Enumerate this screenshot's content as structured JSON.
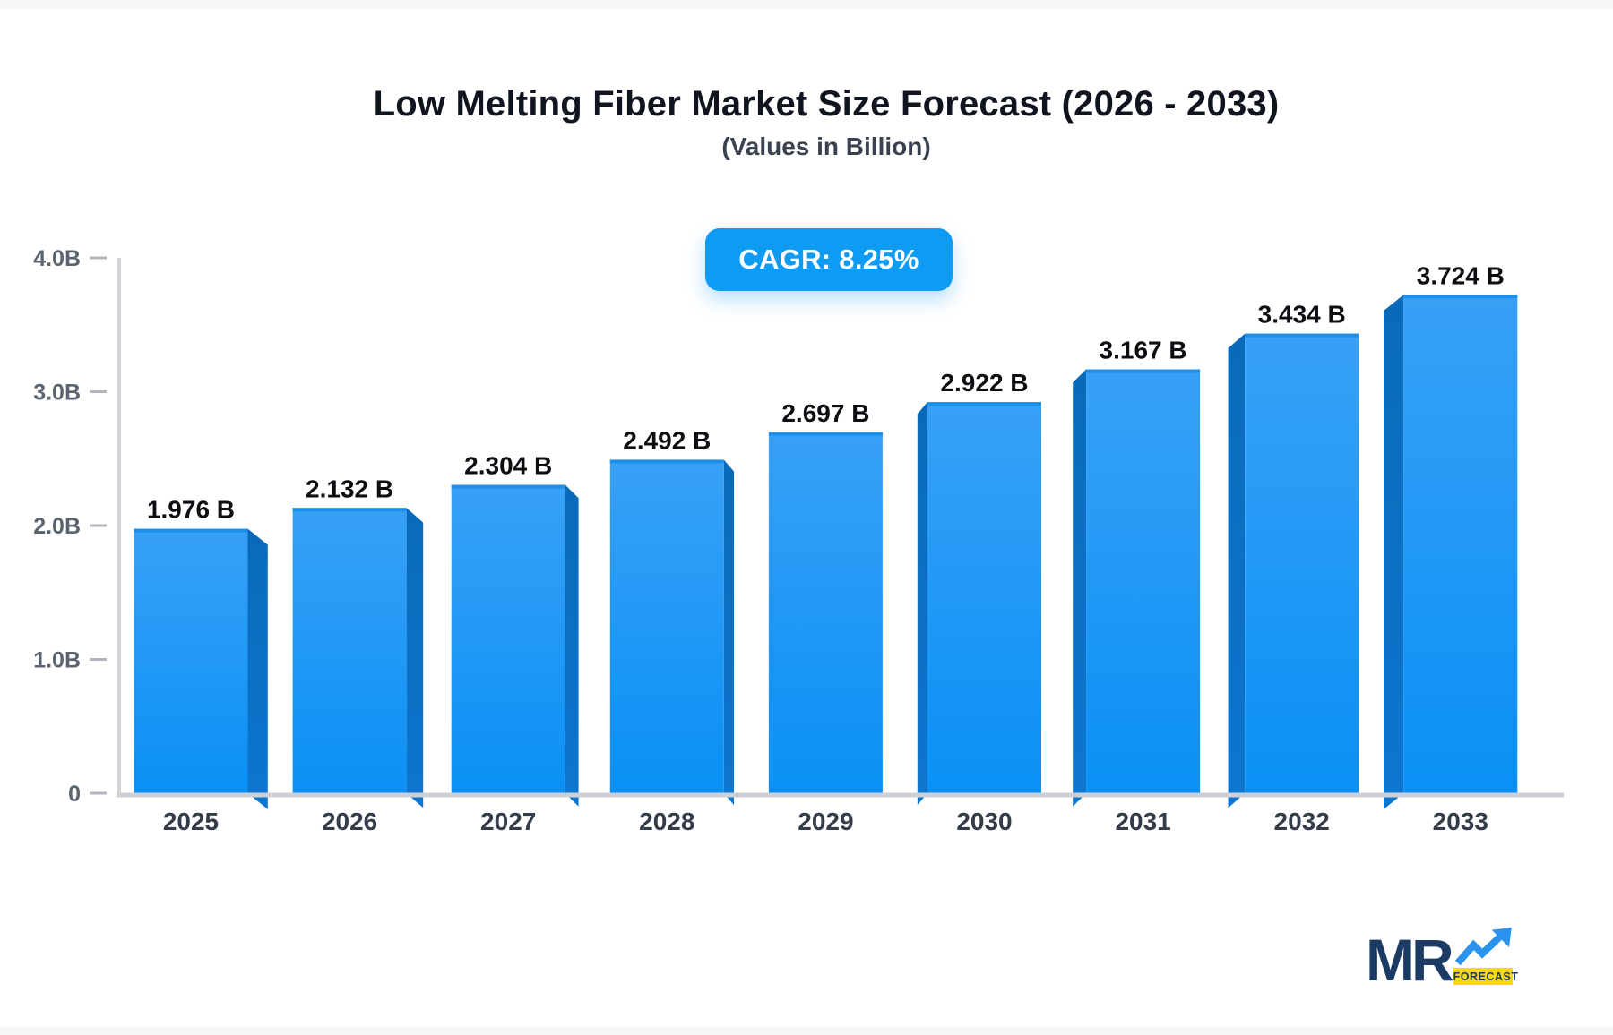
{
  "page": {
    "background": "#f6f7f8",
    "card_background": "#ffffff"
  },
  "header": {
    "title": "Low Melting Fiber Market Size Forecast (2026 - 2033)",
    "subtitle": "(Values in Billion)"
  },
  "badge": {
    "label": "CAGR: 8.25%",
    "background": "#0e9bf3",
    "text_color": "#ffffff"
  },
  "chart_data": {
    "type": "bar",
    "title": "Low Melting Fiber Market Size Forecast (2026 - 2033)",
    "subtitle": "(Values in Billion)",
    "unit": "Billion",
    "cagr_percent": 8.25,
    "categories": [
      "2025",
      "2026",
      "2027",
      "2028",
      "2029",
      "2030",
      "2031",
      "2032",
      "2033"
    ],
    "values": [
      1.976,
      2.132,
      2.304,
      2.492,
      2.697,
      2.922,
      3.167,
      3.434,
      3.724
    ],
    "value_labels": [
      "1.976 B",
      "2.132 B",
      "2.304 B",
      "2.492 B",
      "2.697 B",
      "2.922 B",
      "3.167 B",
      "3.434 B",
      "3.724 B"
    ],
    "y_ticks": [
      {
        "label": "4.0B",
        "value": 4.0
      },
      {
        "label": "3.0B",
        "value": 3.0
      },
      {
        "label": "2.0B",
        "value": 2.0
      },
      {
        "label": "1.0B",
        "value": 1.0
      },
      {
        "label": "0",
        "value": 0.0
      }
    ],
    "ylim": [
      0,
      4.0
    ],
    "grid": false,
    "legend": false,
    "bar_front_top_color": "#38a1f6",
    "bar_front_bottom_color": "#0a90f5",
    "bar_top_edge_color": "#1d8ee9",
    "bar_side_top_color": "#0a6ab9",
    "bar_side_bottom_color": "#0d76d0",
    "axis_line_color": "#d2d5da",
    "baseline_color": "#cdd0d6",
    "tick_color": "#b0b5be",
    "y_label_color": "#5a6370",
    "x_label_color": "#343c49",
    "value_label_color": "#0c0e12"
  },
  "logo": {
    "text": "MR",
    "sub": "FORECAST",
    "text_color": "#1c3b64",
    "sub_background": "#f8d909",
    "arrow_color": "#2b93ee",
    "icon": "trend-up-arrow-icon"
  }
}
